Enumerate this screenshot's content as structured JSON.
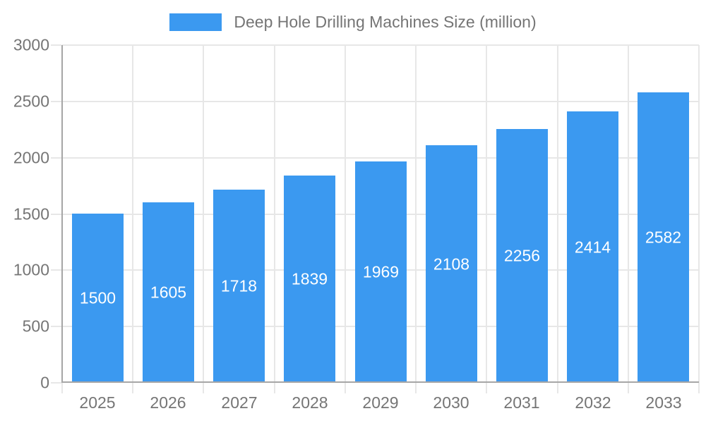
{
  "legend": {
    "label": "Deep Hole Drilling Machines Size (million)"
  },
  "chart_data": {
    "type": "bar",
    "title": "Deep Hole Drilling Machines Size (million)",
    "categories": [
      "2025",
      "2026",
      "2027",
      "2028",
      "2029",
      "2030",
      "2031",
      "2032",
      "2033"
    ],
    "values": [
      1500,
      1605,
      1718,
      1839,
      1969,
      2108,
      2256,
      2414,
      2582
    ],
    "xlabel": "",
    "ylabel": "",
    "ylim": [
      0,
      3000
    ],
    "yticks": [
      0,
      500,
      1000,
      1500,
      2000,
      2500,
      3000
    ],
    "grid": true,
    "legend_position": "top",
    "value_labels_inside_bars": true
  },
  "colors": {
    "bar": "#3B99F0",
    "grid_line": "#e7e7e7",
    "axis_line": "#a6a6a6",
    "tick_text": "#757575",
    "legend_text": "#757575",
    "bar_value_text": "#ffffff",
    "background": "#ffffff"
  }
}
